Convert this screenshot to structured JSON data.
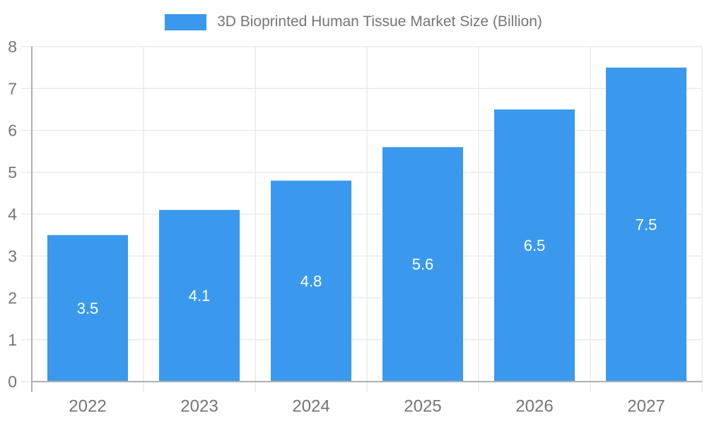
{
  "legend": {
    "label": "3D Bioprinted Human Tissue Market Size (Billion)",
    "swatch_color": "#3A99EC"
  },
  "chart_data": {
    "type": "bar",
    "title": "",
    "series_name": "3D Bioprinted Human Tissue Market Size (Billion)",
    "categories": [
      "2022",
      "2023",
      "2024",
      "2025",
      "2026",
      "2027"
    ],
    "values": [
      3.5,
      4.1,
      4.8,
      5.6,
      6.5,
      7.5
    ],
    "value_labels": [
      "3.5",
      "4.1",
      "4.8",
      "5.6",
      "6.5",
      "7.5"
    ],
    "xlabel": "",
    "ylabel": "",
    "ylim": [
      0,
      8
    ],
    "yticks": [
      0,
      1,
      2,
      3,
      4,
      5,
      6,
      7,
      8
    ],
    "grid": true,
    "legend_position": "top-center",
    "data_labels_position": "center-of-bar",
    "colors": {
      "bar": "#3A99EC",
      "grid": "#E6E6E6",
      "axis": "#AFAFAF",
      "tick_label": "#757575",
      "data_label": "#FFFFFF",
      "background": "#FFFFFF"
    }
  }
}
